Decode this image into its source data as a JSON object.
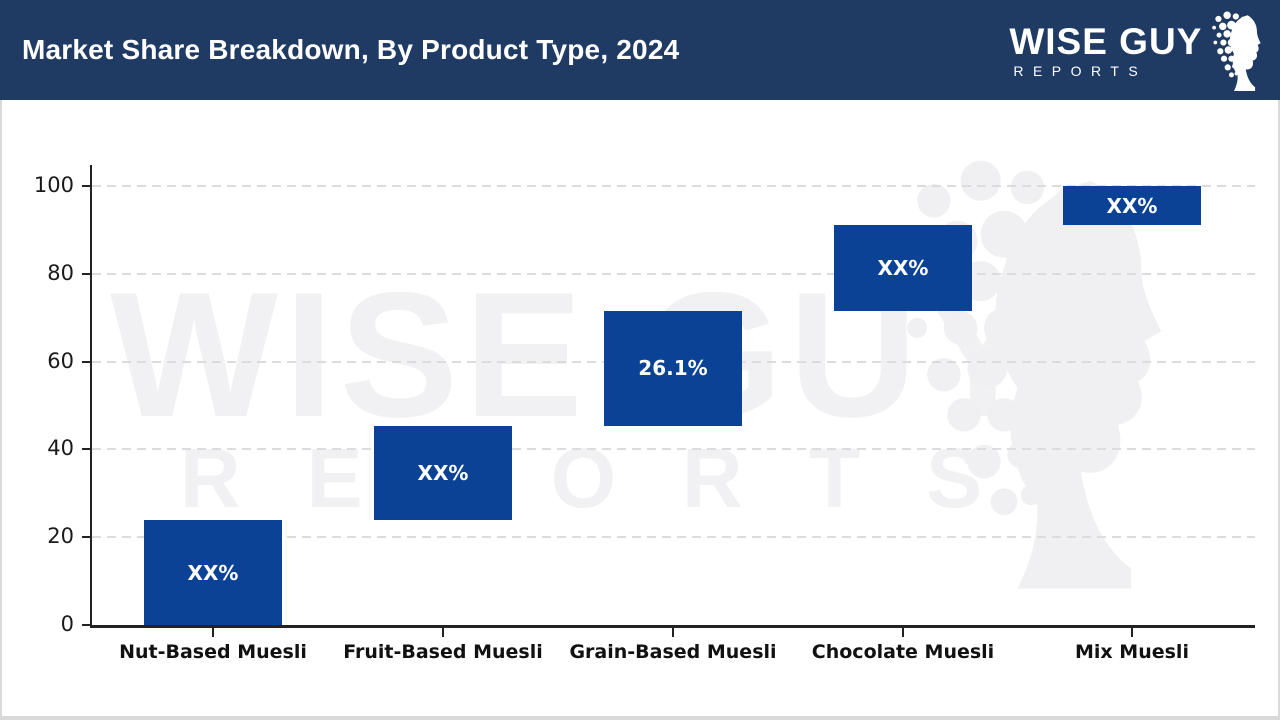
{
  "header": {
    "title": "Market Share Breakdown, By Product Type, 2024",
    "logo": {
      "line1": "WISE GUY",
      "line2": "REPORTS"
    }
  },
  "watermark": {
    "line1": "WISE GUY",
    "line2": "REPORTS"
  },
  "colors": {
    "header_bg": "#1f3a63",
    "bar": "#0b4296",
    "grid": "#dcdcdc",
    "axis": "#222222",
    "bar_label": "#ffffff",
    "watermark": "#f1f1f4"
  },
  "chart_data": {
    "type": "bar",
    "variant": "waterfall",
    "title": "Market Share Breakdown, By Product Type, 2024",
    "categories": [
      "Nut-Based Muesli",
      "Fruit-Based Muesli",
      "Grain-Based Muesli",
      "Chocolate Muesli",
      "Mix Muesli"
    ],
    "segments": [
      {
        "category": "Nut-Based Muesli",
        "start": 0,
        "end": 23.9,
        "label": "XX%"
      },
      {
        "category": "Fruit-Based Muesli",
        "start": 23.9,
        "end": 45.4,
        "label": "XX%"
      },
      {
        "category": "Grain-Based Muesli",
        "start": 45.4,
        "end": 71.5,
        "label": "26.1%"
      },
      {
        "category": "Chocolate Muesli",
        "start": 71.5,
        "end": 91.1,
        "label": "XX%"
      },
      {
        "category": "Mix Muesli",
        "start": 91.1,
        "end": 100,
        "label": "XX%"
      }
    ],
    "ylim": [
      0,
      100
    ],
    "yticks": [
      0,
      20,
      40,
      60,
      80,
      100
    ],
    "grid": "horizontal-dashed",
    "legend": "none"
  }
}
